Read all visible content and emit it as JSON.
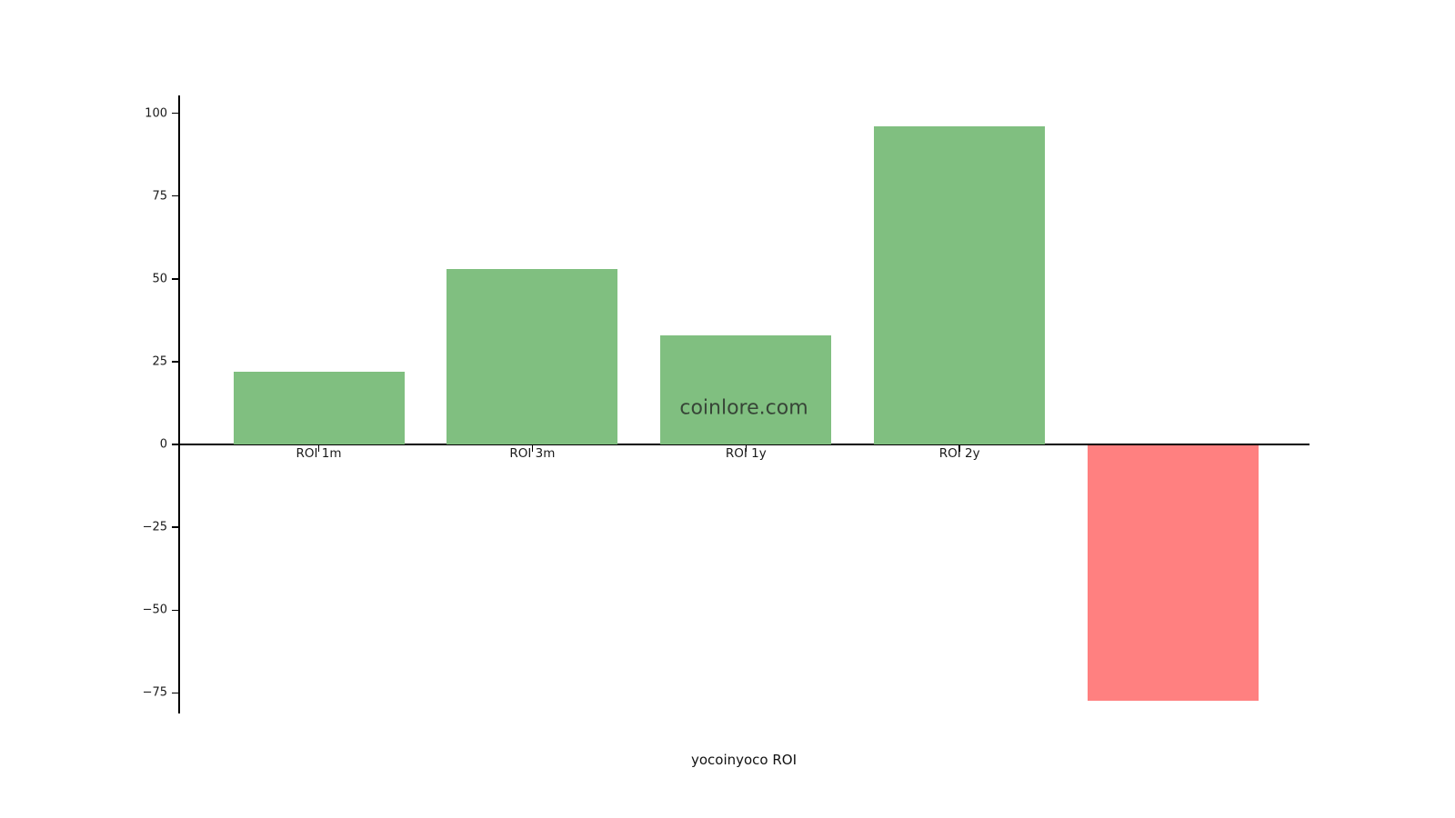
{
  "figure": {
    "watermark": "coinlore.com",
    "xlabel": "yocoinyoco ROI"
  },
  "chart_data": {
    "type": "bar",
    "title": "",
    "xlabel": "yocoinyoco ROI",
    "ylabel": "",
    "watermark": "coinlore.com",
    "categories": [
      "ROI 1m",
      "ROI 3m",
      "ROI 1y",
      "ROI 2y",
      ""
    ],
    "values": [
      22,
      53,
      33,
      96,
      -77
    ],
    "bar_colors": [
      "#80bf80",
      "#80bf80",
      "#80bf80",
      "#80bf80",
      "#ff8080"
    ],
    "positive_color": "#80bf80",
    "negative_color": "#ff8080",
    "yticks": [
      100,
      75,
      50,
      25,
      0,
      -25,
      -50,
      -75
    ],
    "ylim": [
      -81.2,
      105.4
    ],
    "grid": false,
    "legend_position": "none",
    "axis_line_color": "#000000"
  }
}
